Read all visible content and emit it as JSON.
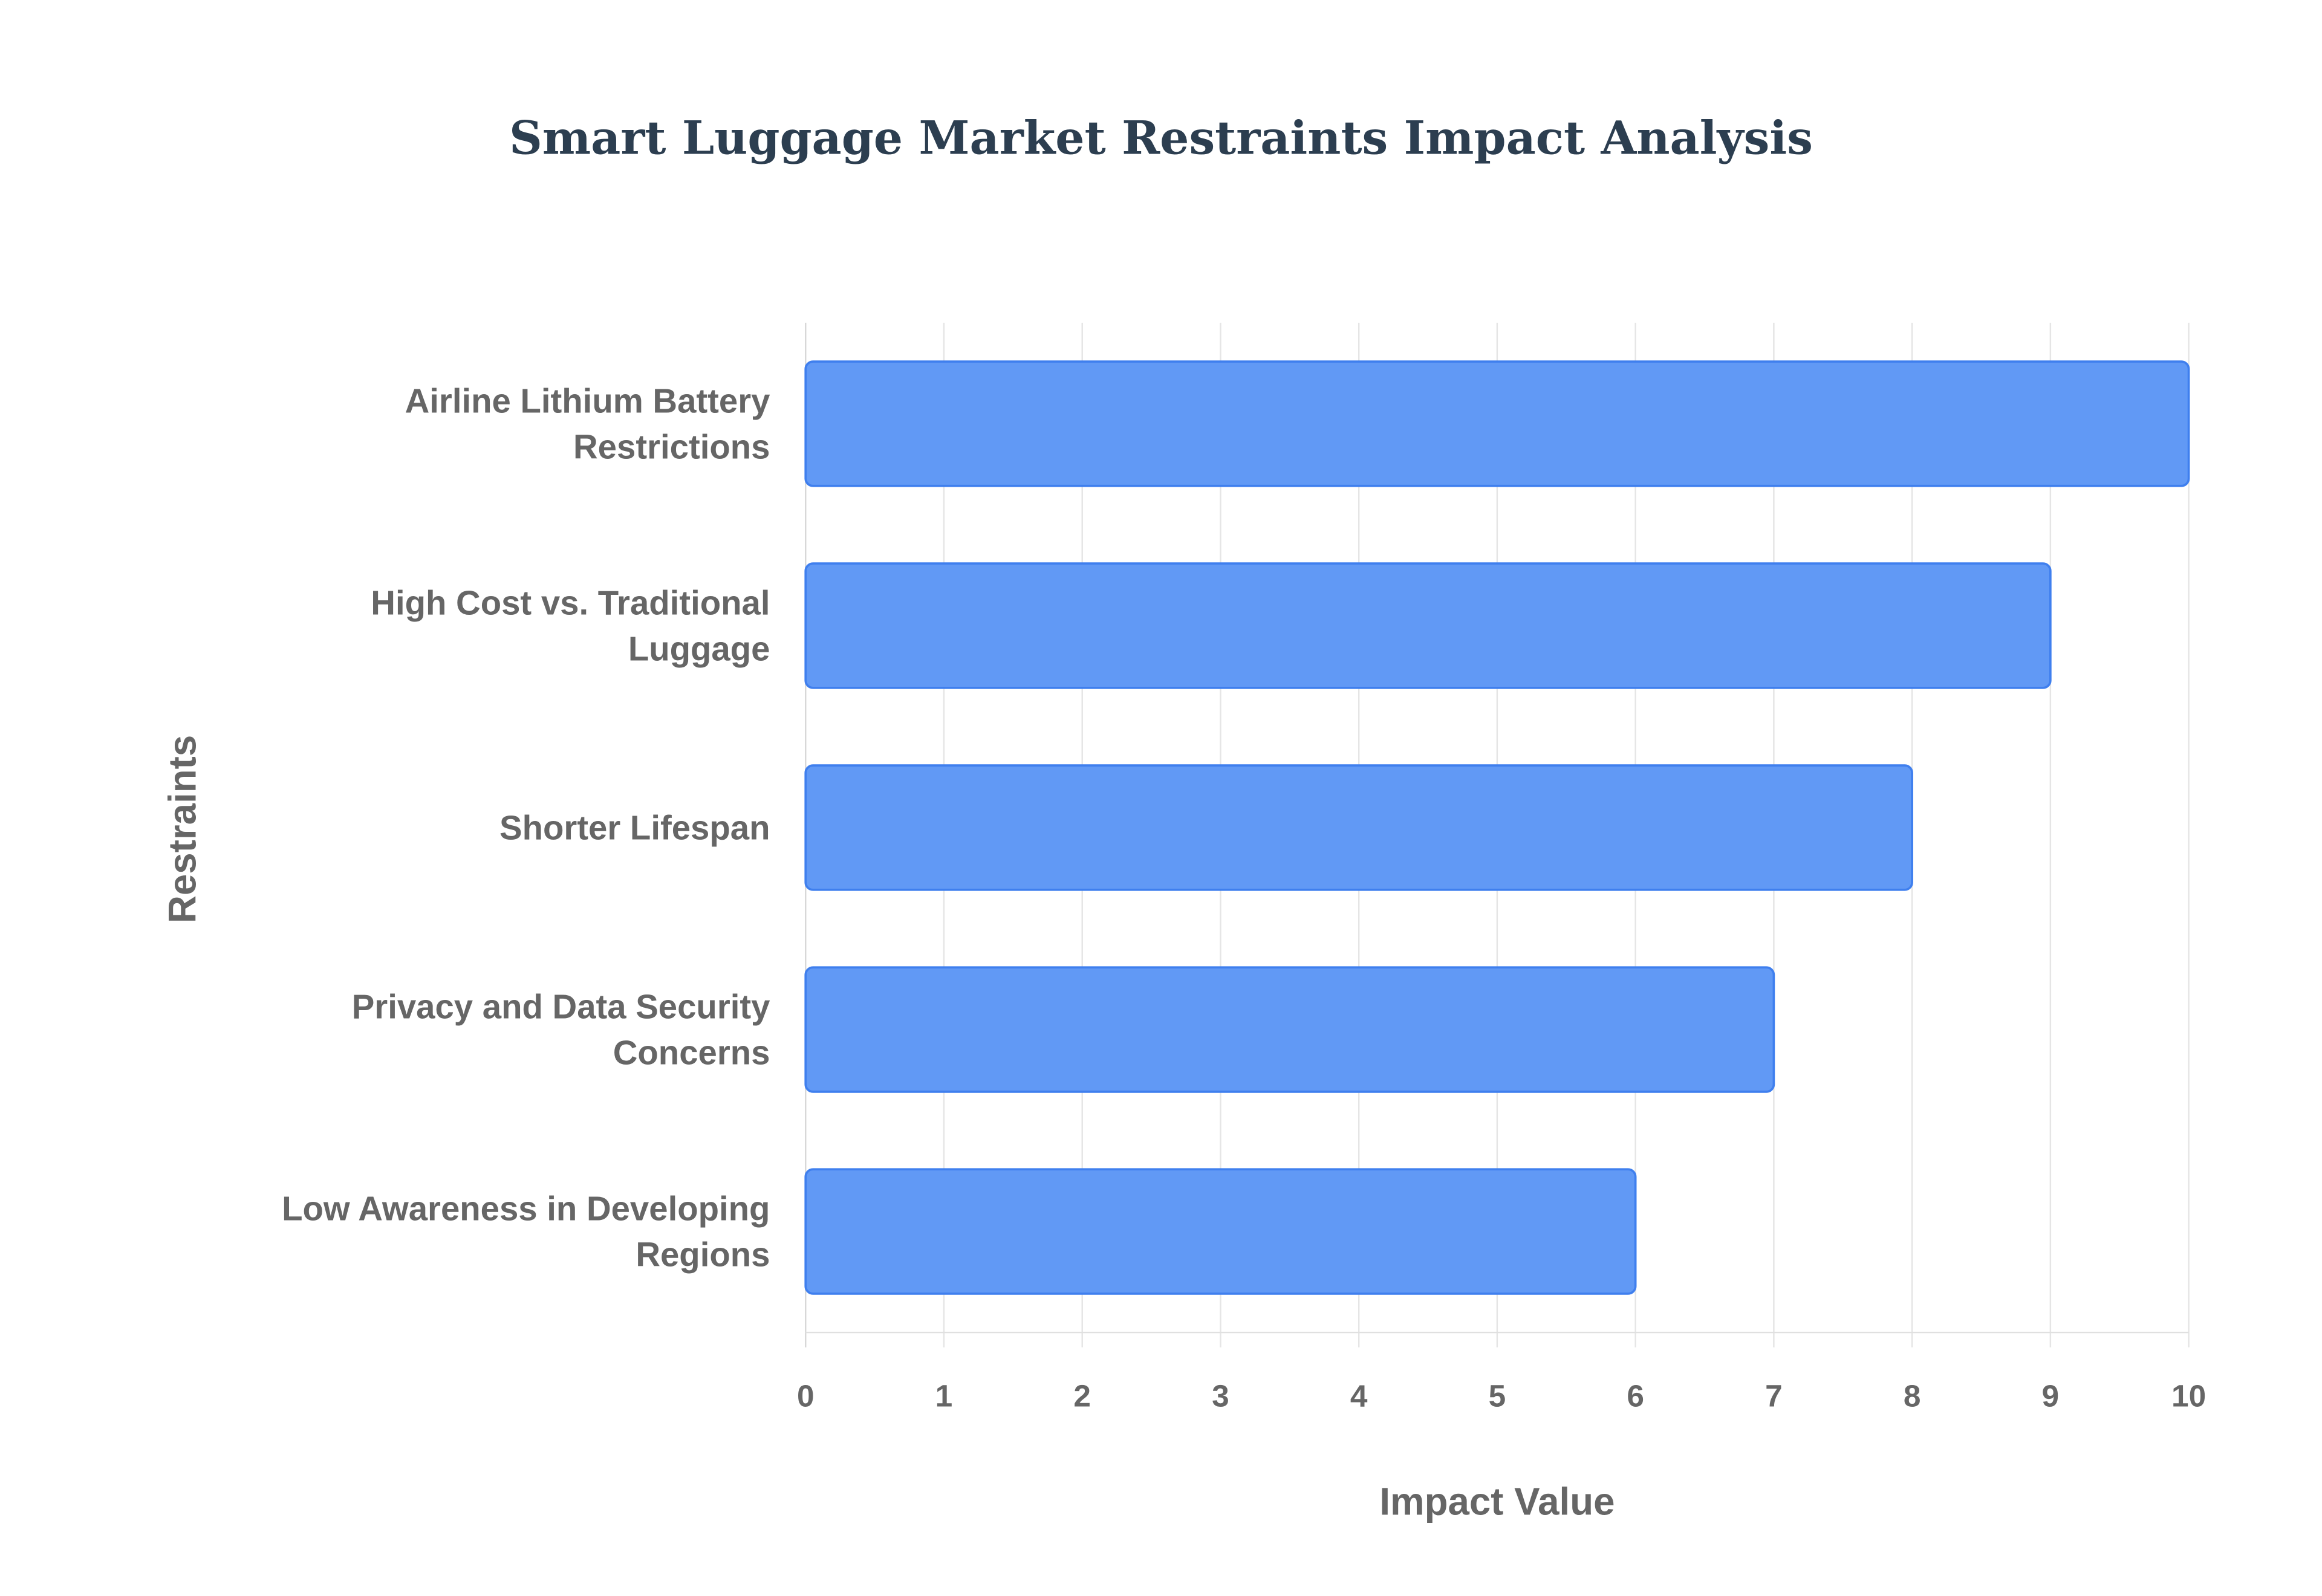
{
  "chart_data": {
    "type": "bar",
    "orientation": "horizontal",
    "title": "Smart Luggage Market Restraints Impact Analysis",
    "xlabel": "Impact Value",
    "ylabel": "Restraints",
    "categories": [
      [
        "Airline Lithium Battery",
        "Restrictions"
      ],
      [
        "High Cost vs. Traditional",
        "Luggage"
      ],
      [
        "Shorter Lifespan"
      ],
      [
        "Privacy and Data Security",
        "Concerns"
      ],
      [
        "Low Awareness in Developing",
        "Regions"
      ]
    ],
    "values": [
      10,
      9,
      8,
      7,
      6
    ],
    "xlim": [
      0,
      10
    ],
    "xticks": [
      "0",
      "1",
      "2",
      "3",
      "4",
      "5",
      "6",
      "7",
      "8",
      "9",
      "10"
    ],
    "grid": true,
    "legend": "none",
    "colors": {
      "bar": "#6199f5",
      "bar_border": "#3f7fee",
      "grid": "#e5e5e5"
    }
  }
}
